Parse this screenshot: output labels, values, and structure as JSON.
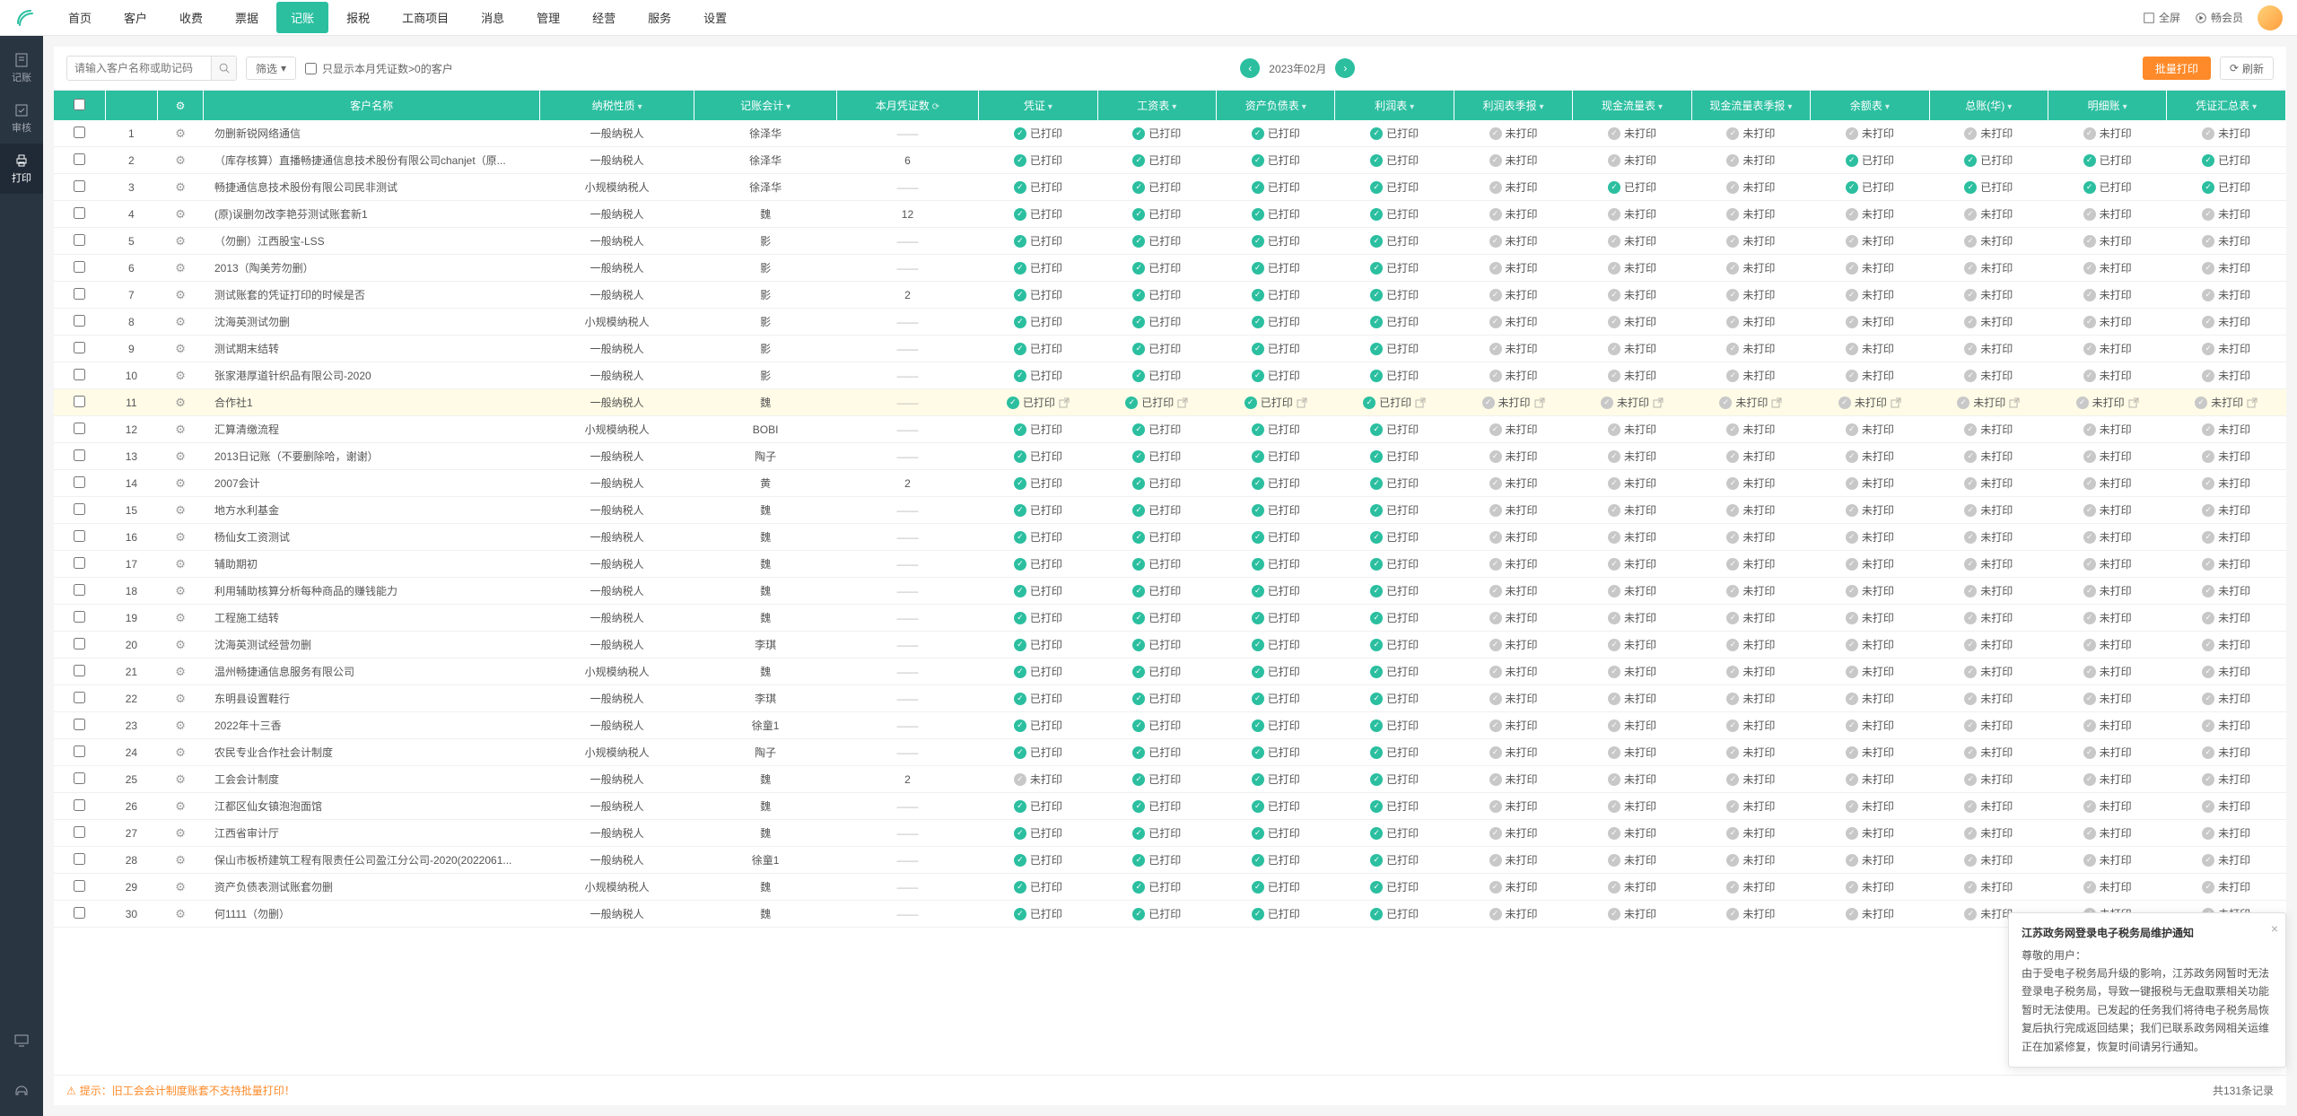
{
  "topnav": [
    "首页",
    "客户",
    "收费",
    "票据",
    "记账",
    "报税",
    "工商项目",
    "消息",
    "管理",
    "经营",
    "服务",
    "设置"
  ],
  "topnav_active_index": 4,
  "topbar_right": {
    "fullscreen": "全屏",
    "member": "畅会员"
  },
  "sidebar": [
    {
      "label": "记账",
      "icon": "ledger"
    },
    {
      "label": "审核",
      "icon": "review"
    },
    {
      "label": "打印",
      "icon": "print"
    }
  ],
  "sidebar_bottom": [
    {
      "label": "",
      "icon": "monitor"
    },
    {
      "label": "",
      "icon": "headset"
    }
  ],
  "sidebar_active_index": 2,
  "toolbar": {
    "search_placeholder": "请输入客户名称或助记码",
    "filter_label": "筛选",
    "only_this_month_label": "只显示本月凭证数>0的客户",
    "month_label": "2023年02月",
    "batch_print_label": "批量打印",
    "refresh_label": "刷新"
  },
  "columns": [
    {
      "key": "chk",
      "label": "",
      "icon": ""
    },
    {
      "key": "seq",
      "label": "",
      "icon": ""
    },
    {
      "key": "gear",
      "label": "",
      "icon": "gear"
    },
    {
      "key": "name",
      "label": "客户名称",
      "icon": ""
    },
    {
      "key": "tax",
      "label": "纳税性质",
      "icon": "filter"
    },
    {
      "key": "acct",
      "label": "记账会计",
      "icon": "filter"
    },
    {
      "key": "count",
      "label": "本月凭证数",
      "icon": "refresh"
    },
    {
      "key": "s0",
      "label": "凭证",
      "icon": "filter"
    },
    {
      "key": "s1",
      "label": "工资表",
      "icon": "filter"
    },
    {
      "key": "s2",
      "label": "资产负债表",
      "icon": "filter"
    },
    {
      "key": "s3",
      "label": "利润表",
      "icon": "filter"
    },
    {
      "key": "s4",
      "label": "利润表季报",
      "icon": "filter"
    },
    {
      "key": "s5",
      "label": "现金流量表",
      "icon": "filter"
    },
    {
      "key": "s6",
      "label": "现金流量表季报",
      "icon": "filter"
    },
    {
      "key": "s7",
      "label": "余额表",
      "icon": "filter"
    },
    {
      "key": "s8",
      "label": "总账(华)",
      "icon": "filter"
    },
    {
      "key": "s9",
      "label": "明细账",
      "icon": "filter"
    },
    {
      "key": "s10",
      "label": "凭证汇总表",
      "icon": "filter"
    }
  ],
  "status_labels": {
    "done": "已打印",
    "pending": "未打印"
  },
  "rows": [
    {
      "seq": 1,
      "name": "勿删新锐网络通信",
      "tax": "一般纳税人",
      "acct": "徐泽华",
      "count": "",
      "s": [
        "done",
        "done",
        "done",
        "done",
        "pending",
        "pending",
        "pending",
        "pending",
        "pending",
        "pending",
        "pending"
      ],
      "ext": false
    },
    {
      "seq": 2,
      "name": "（库存核算）直播畅捷通信息技术股份有限公司chanjet（原...",
      "tax": "一般纳税人",
      "acct": "徐泽华",
      "count": "6",
      "s": [
        "done",
        "done",
        "done",
        "done",
        "pending",
        "pending",
        "pending",
        "done",
        "done",
        "done",
        "done"
      ],
      "ext": false
    },
    {
      "seq": 3,
      "name": "畅捷通信息技术股份有限公司民非测试",
      "tax": "小规模纳税人",
      "acct": "徐泽华",
      "count": "",
      "s": [
        "done",
        "done",
        "done",
        "done",
        "pending",
        "done",
        "pending",
        "done",
        "done",
        "done",
        "done"
      ],
      "ext": false
    },
    {
      "seq": 4,
      "name": "(原)误删勿改李艳芬测试账套新1",
      "tax": "一般纳税人",
      "acct": "魏",
      "count": "12",
      "s": [
        "done",
        "done",
        "done",
        "done",
        "pending",
        "pending",
        "pending",
        "pending",
        "pending",
        "pending",
        "pending"
      ],
      "ext": false
    },
    {
      "seq": 5,
      "name": "（勿删）江西股宝-LSS",
      "tax": "一般纳税人",
      "acct": "影",
      "count": "",
      "s": [
        "done",
        "done",
        "done",
        "done",
        "pending",
        "pending",
        "pending",
        "pending",
        "pending",
        "pending",
        "pending"
      ],
      "ext": false
    },
    {
      "seq": 6,
      "name": "2013（陶美芳勿删）",
      "tax": "一般纳税人",
      "acct": "影",
      "count": "",
      "s": [
        "done",
        "done",
        "done",
        "done",
        "pending",
        "pending",
        "pending",
        "pending",
        "pending",
        "pending",
        "pending"
      ],
      "ext": false
    },
    {
      "seq": 7,
      "name": "测试账套的凭证打印的时候是否",
      "tax": "一般纳税人",
      "acct": "影",
      "count": "2",
      "s": [
        "done",
        "done",
        "done",
        "done",
        "pending",
        "pending",
        "pending",
        "pending",
        "pending",
        "pending",
        "pending"
      ],
      "ext": false
    },
    {
      "seq": 8,
      "name": "沈海英测试勿删",
      "tax": "小规模纳税人",
      "acct": "影",
      "count": "",
      "s": [
        "done",
        "done",
        "done",
        "done",
        "pending",
        "pending",
        "pending",
        "pending",
        "pending",
        "pending",
        "pending"
      ],
      "ext": false
    },
    {
      "seq": 9,
      "name": "测试期末结转",
      "tax": "一般纳税人",
      "acct": "影",
      "count": "",
      "s": [
        "done",
        "done",
        "done",
        "done",
        "pending",
        "pending",
        "pending",
        "pending",
        "pending",
        "pending",
        "pending"
      ],
      "ext": false
    },
    {
      "seq": 10,
      "name": "张家港厚道针织品有限公司-2020",
      "tax": "一般纳税人",
      "acct": "影",
      "count": "",
      "s": [
        "done",
        "done",
        "done",
        "done",
        "pending",
        "pending",
        "pending",
        "pending",
        "pending",
        "pending",
        "pending"
      ],
      "ext": false
    },
    {
      "seq": 11,
      "name": "合作社1",
      "tax": "一般纳税人",
      "acct": "魏",
      "count": "",
      "s": [
        "done",
        "done",
        "done",
        "done",
        "pending",
        "pending",
        "pending",
        "pending",
        "pending",
        "pending",
        "pending"
      ],
      "ext": true,
      "highlight": true
    },
    {
      "seq": 12,
      "name": "汇算清缴流程",
      "tax": "小规模纳税人",
      "acct": "BOBI",
      "count": "",
      "s": [
        "done",
        "done",
        "done",
        "done",
        "pending",
        "pending",
        "pending",
        "pending",
        "pending",
        "pending",
        "pending"
      ],
      "ext": false
    },
    {
      "seq": 13,
      "name": "2013日记账（不要删除哈，谢谢）",
      "tax": "一般纳税人",
      "acct": "陶子",
      "count": "",
      "s": [
        "done",
        "done",
        "done",
        "done",
        "pending",
        "pending",
        "pending",
        "pending",
        "pending",
        "pending",
        "pending"
      ],
      "ext": false
    },
    {
      "seq": 14,
      "name": "2007会计",
      "tax": "一般纳税人",
      "acct": "黄",
      "count": "2",
      "s": [
        "done",
        "done",
        "done",
        "done",
        "pending",
        "pending",
        "pending",
        "pending",
        "pending",
        "pending",
        "pending"
      ],
      "ext": false
    },
    {
      "seq": 15,
      "name": "地方水利基金",
      "tax": "一般纳税人",
      "acct": "魏",
      "count": "",
      "s": [
        "done",
        "done",
        "done",
        "done",
        "pending",
        "pending",
        "pending",
        "pending",
        "pending",
        "pending",
        "pending"
      ],
      "ext": false
    },
    {
      "seq": 16,
      "name": "杨仙女工资测试",
      "tax": "一般纳税人",
      "acct": "魏",
      "count": "",
      "s": [
        "done",
        "done",
        "done",
        "done",
        "pending",
        "pending",
        "pending",
        "pending",
        "pending",
        "pending",
        "pending"
      ],
      "ext": false
    },
    {
      "seq": 17,
      "name": "辅助期初",
      "tax": "一般纳税人",
      "acct": "魏",
      "count": "",
      "s": [
        "done",
        "done",
        "done",
        "done",
        "pending",
        "pending",
        "pending",
        "pending",
        "pending",
        "pending",
        "pending"
      ],
      "ext": false
    },
    {
      "seq": 18,
      "name": "利用辅助核算分析每种商品的赚钱能力",
      "tax": "一般纳税人",
      "acct": "魏",
      "count": "",
      "s": [
        "done",
        "done",
        "done",
        "done",
        "pending",
        "pending",
        "pending",
        "pending",
        "pending",
        "pending",
        "pending"
      ],
      "ext": false
    },
    {
      "seq": 19,
      "name": "工程施工结转",
      "tax": "一般纳税人",
      "acct": "魏",
      "count": "",
      "s": [
        "done",
        "done",
        "done",
        "done",
        "pending",
        "pending",
        "pending",
        "pending",
        "pending",
        "pending",
        "pending"
      ],
      "ext": false
    },
    {
      "seq": 20,
      "name": "沈海英测试经营勿删",
      "tax": "一般纳税人",
      "acct": "李琪",
      "count": "",
      "s": [
        "done",
        "done",
        "done",
        "done",
        "pending",
        "pending",
        "pending",
        "pending",
        "pending",
        "pending",
        "pending"
      ],
      "ext": false
    },
    {
      "seq": 21,
      "name": "温州畅捷通信息服务有限公司",
      "tax": "小规模纳税人",
      "acct": "魏",
      "count": "",
      "s": [
        "done",
        "done",
        "done",
        "done",
        "pending",
        "pending",
        "pending",
        "pending",
        "pending",
        "pending",
        "pending"
      ],
      "ext": false
    },
    {
      "seq": 22,
      "name": "东明县设置鞋行",
      "tax": "一般纳税人",
      "acct": "李琪",
      "count": "",
      "s": [
        "done",
        "done",
        "done",
        "done",
        "pending",
        "pending",
        "pending",
        "pending",
        "pending",
        "pending",
        "pending"
      ],
      "ext": false
    },
    {
      "seq": 23,
      "name": "2022年十三香",
      "tax": "一般纳税人",
      "acct": "徐童1",
      "count": "",
      "s": [
        "done",
        "done",
        "done",
        "done",
        "pending",
        "pending",
        "pending",
        "pending",
        "pending",
        "pending",
        "pending"
      ],
      "ext": false
    },
    {
      "seq": 24,
      "name": "农民专业合作社会计制度",
      "tax": "小规模纳税人",
      "acct": "陶子",
      "count": "",
      "s": [
        "done",
        "done",
        "done",
        "done",
        "pending",
        "pending",
        "pending",
        "pending",
        "pending",
        "pending",
        "pending"
      ],
      "ext": false
    },
    {
      "seq": 25,
      "name": "工会会计制度",
      "tax": "一般纳税人",
      "acct": "魏",
      "count": "2",
      "s": [
        "pending",
        "done",
        "done",
        "done",
        "pending",
        "pending",
        "pending",
        "pending",
        "pending",
        "pending",
        "pending"
      ],
      "ext": false
    },
    {
      "seq": 26,
      "name": "江都区仙女镇泡泡面馆",
      "tax": "一般纳税人",
      "acct": "魏",
      "count": "",
      "s": [
        "done",
        "done",
        "done",
        "done",
        "pending",
        "pending",
        "pending",
        "pending",
        "pending",
        "pending",
        "pending"
      ],
      "ext": false
    },
    {
      "seq": 27,
      "name": "江西省审计厅",
      "tax": "一般纳税人",
      "acct": "魏",
      "count": "",
      "s": [
        "done",
        "done",
        "done",
        "done",
        "pending",
        "pending",
        "pending",
        "pending",
        "pending",
        "pending",
        "pending"
      ],
      "ext": false
    },
    {
      "seq": 28,
      "name": "保山市板桥建筑工程有限责任公司盈江分公司-2020(2022061...",
      "tax": "一般纳税人",
      "acct": "徐童1",
      "count": "",
      "s": [
        "done",
        "done",
        "done",
        "done",
        "pending",
        "pending",
        "pending",
        "pending",
        "pending",
        "pending",
        "pending"
      ],
      "ext": false
    },
    {
      "seq": 29,
      "name": "资产负债表测试账套勿删",
      "tax": "小规模纳税人",
      "acct": "魏",
      "count": "",
      "s": [
        "done",
        "done",
        "done",
        "done",
        "pending",
        "pending",
        "pending",
        "pending",
        "pending",
        "pending",
        "pending"
      ],
      "ext": false
    },
    {
      "seq": 30,
      "name": "何1111（勿删）",
      "tax": "一般纳税人",
      "acct": "魏",
      "count": "",
      "s": [
        "done",
        "done",
        "done",
        "done",
        "pending",
        "pending",
        "pending",
        "pending",
        "pending",
        "pending",
        "pending"
      ],
      "ext": false
    }
  ],
  "footer": {
    "tip": "提示：旧工会会计制度账套不支持批量打印！",
    "count": "共131条记录"
  },
  "toast": {
    "title": "江苏政务网登录电子税务局维护通知",
    "greeting": "尊敬的用户：",
    "body": "由于受电子税务局升级的影响，江苏政务网暂时无法登录电子税务局，导致一键报税与无盘取票相关功能暂时无法使用。已发起的任务我们将待电子税务局恢复后执行完成返回结果；我们已联系政务网相关运维正在加紧修复，恢复时间请另行通知。"
  },
  "colors": {
    "accent": "#2bbfa0",
    "primary_btn": "#ff8a29",
    "sidebar_bg": "#2a3542",
    "dot_done": "#2bbfa0",
    "dot_pending": "#c8c8c8",
    "highlight_row": "#fffbe6"
  }
}
